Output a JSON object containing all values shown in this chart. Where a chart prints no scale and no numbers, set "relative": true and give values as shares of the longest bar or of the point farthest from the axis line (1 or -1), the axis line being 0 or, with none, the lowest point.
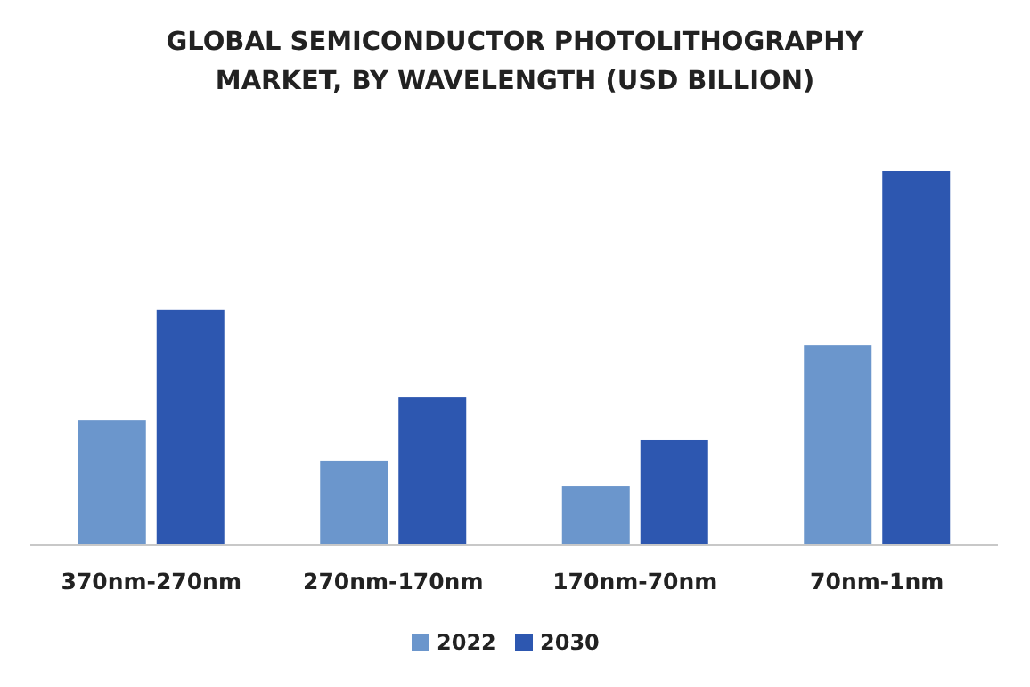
{
  "chart_data": {
    "type": "bar",
    "title": "GLOBAL SEMICONDUCTOR PHOTOLITHOGRAPHY MARKET, BY WAVELENGTH (USD BILLION)",
    "relative": true,
    "categories": [
      "370nm-270nm",
      "270nm-170nm",
      "170nm-70nm",
      "70nm-1nm"
    ],
    "series": [
      {
        "name": "2022",
        "color": "#6b96cc",
        "values": [
          0.333,
          0.224,
          0.157,
          0.533
        ]
      },
      {
        "name": "2030",
        "color": "#2d57b0",
        "values": [
          0.629,
          0.395,
          0.281,
          1
        ]
      }
    ],
    "legend": "bottom",
    "grid": false
  }
}
